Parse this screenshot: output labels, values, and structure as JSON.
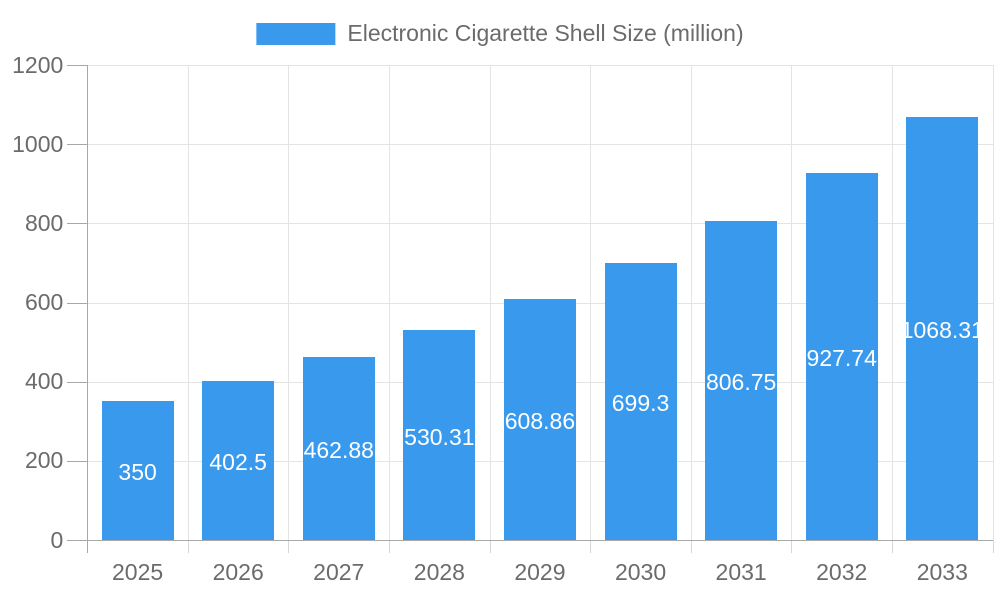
{
  "legend": {
    "label": "Electronic Cigarette Shell Size (million)"
  },
  "colors": {
    "bar": "#3999ED",
    "axis_line": "#a8a8a8",
    "grid_line": "#e4e4e4",
    "x_tick": "#d6d6d6",
    "axis_label_text": "#6b6b6b",
    "legend_text": "#6b6b6b",
    "value_label_text": "#ffffff",
    "background": "#ffffff"
  },
  "chart_data": {
    "type": "bar",
    "title": "Electronic Cigarette Shell Size (million)",
    "legend": [
      "Electronic Cigarette Shell Size (million)"
    ],
    "legend_position": "top-center",
    "categories": [
      "2025",
      "2026",
      "2027",
      "2028",
      "2029",
      "2030",
      "2031",
      "2032",
      "2033"
    ],
    "values": [
      350,
      402.5,
      462.88,
      530.31,
      608.86,
      699.3,
      806.75,
      927.74,
      1068.31
    ],
    "xlabel": "",
    "ylabel": "",
    "y_ticks": [
      0,
      200,
      400,
      600,
      800,
      1000,
      1200
    ],
    "ylim": [
      0,
      1200
    ],
    "grid": true,
    "value_label_position": "inside-center"
  }
}
